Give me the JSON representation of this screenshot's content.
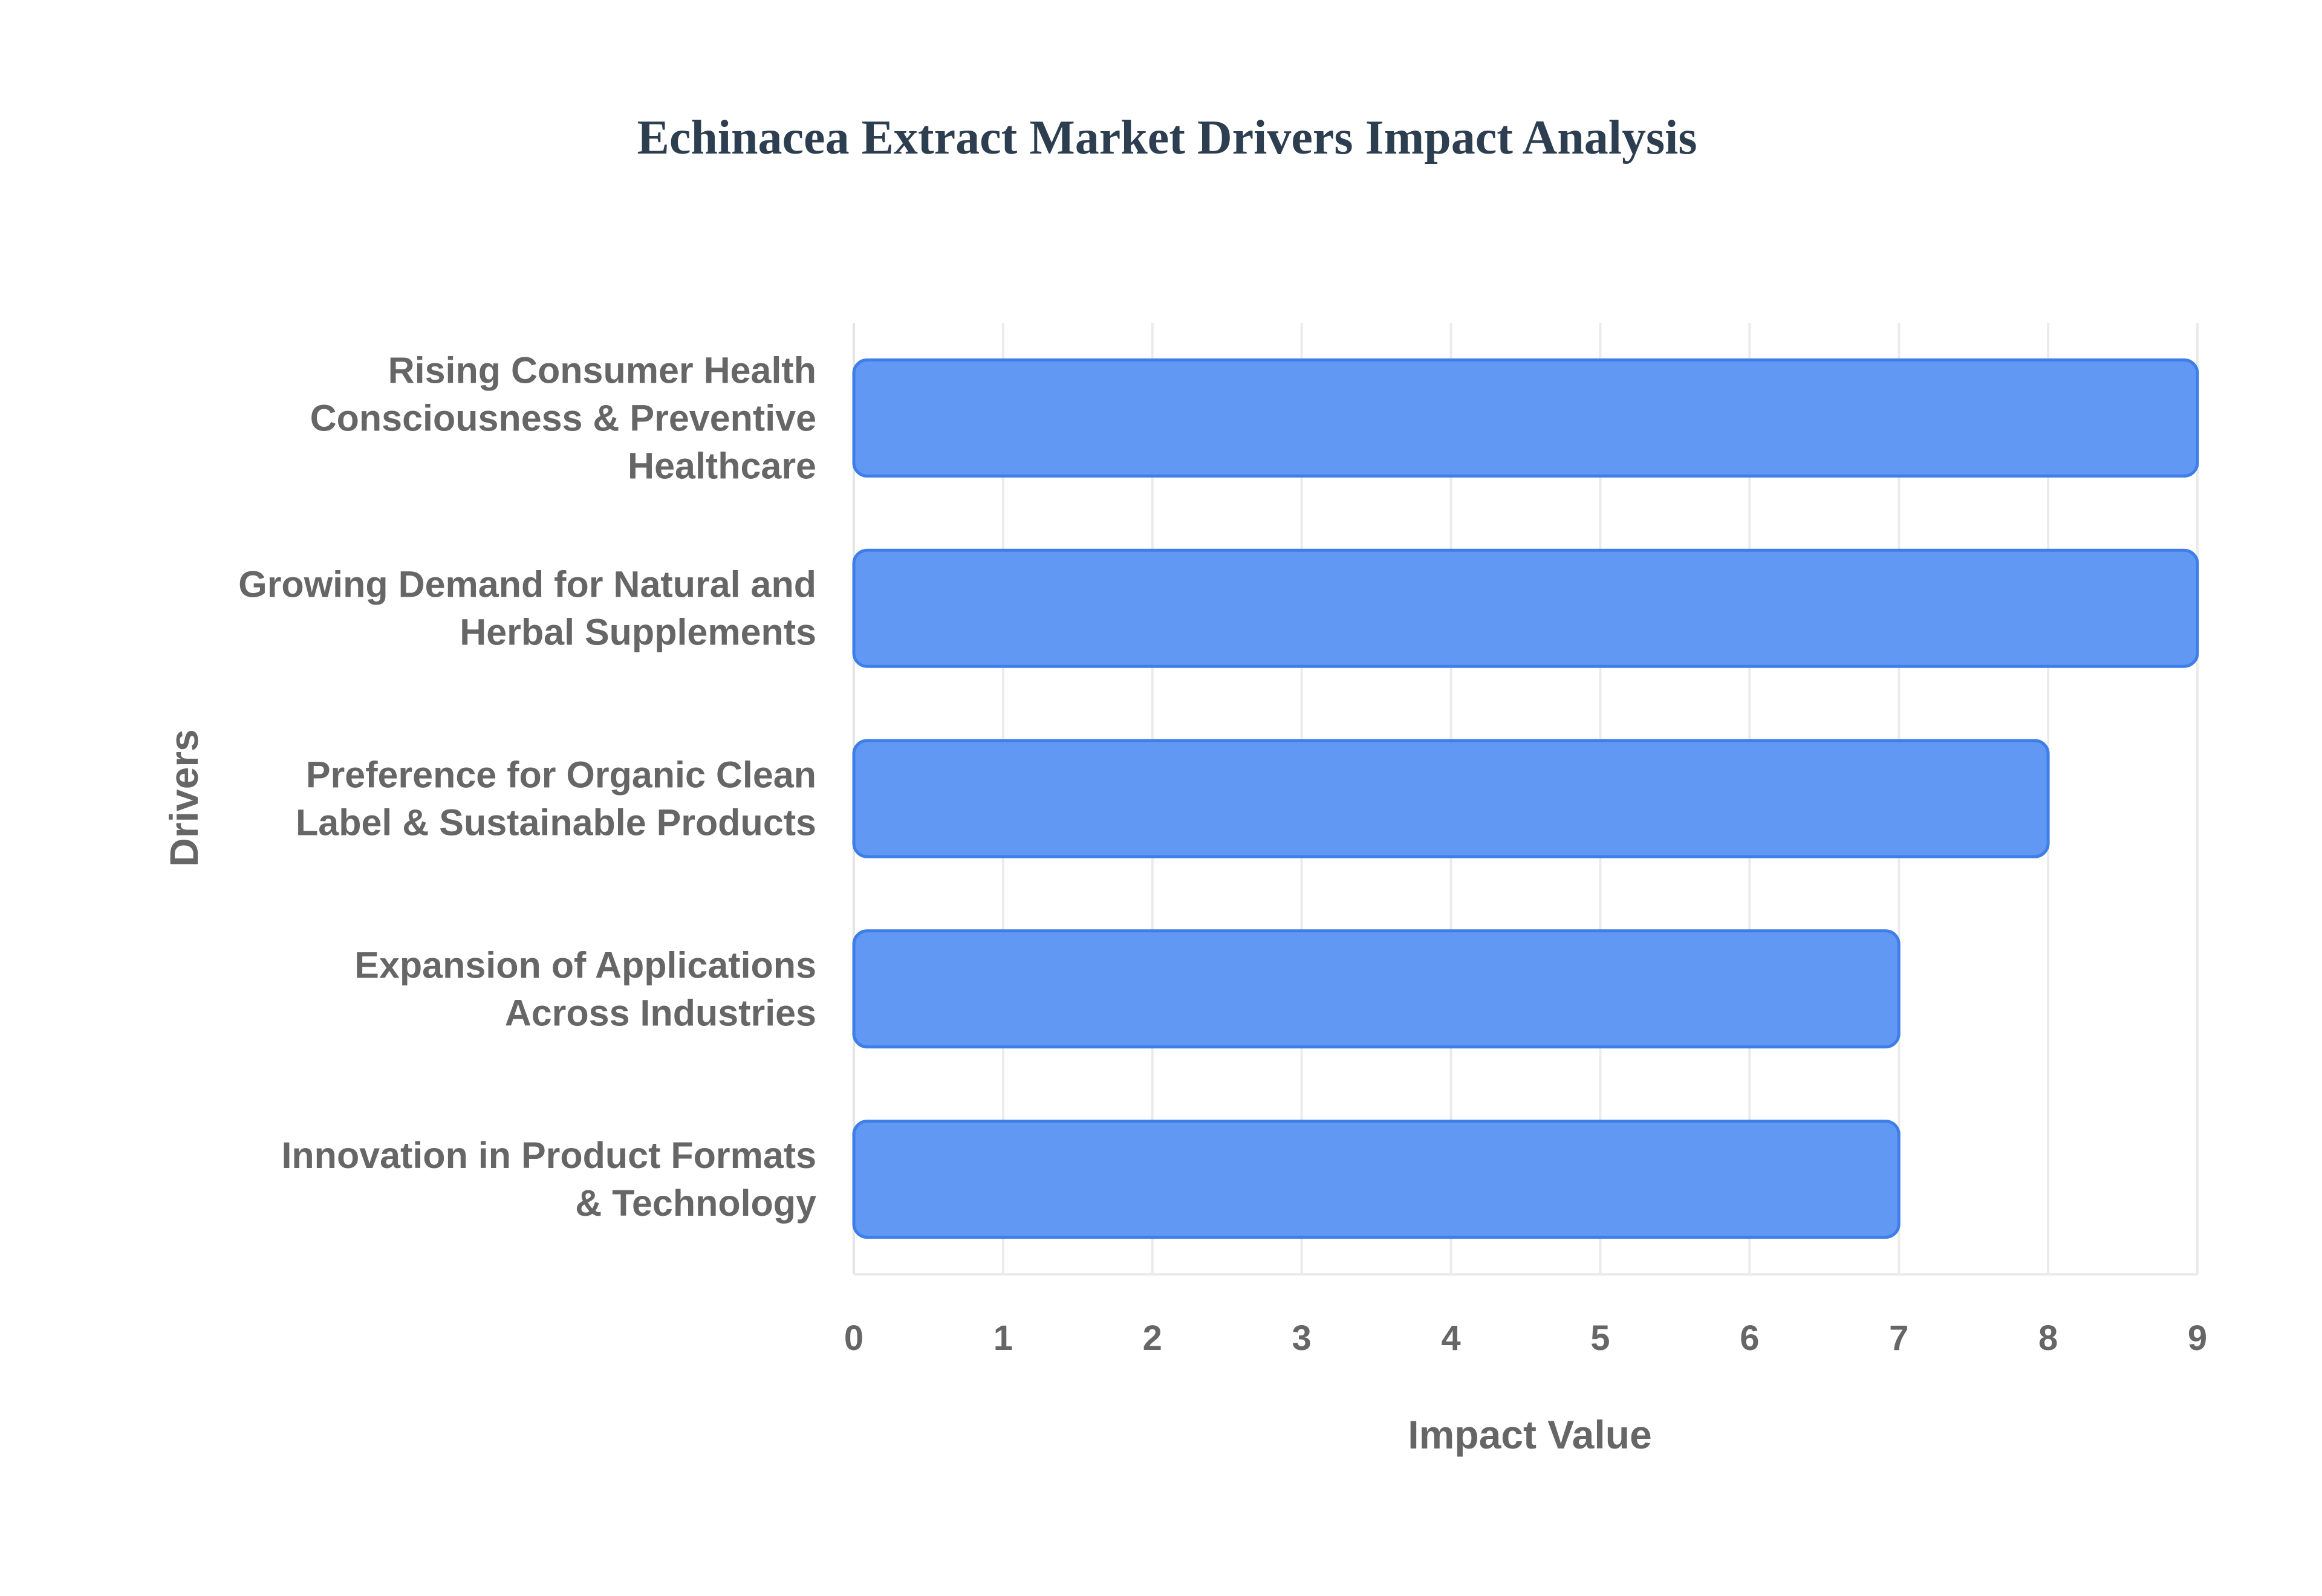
{
  "chart_data": {
    "type": "bar",
    "orientation": "horizontal",
    "title": "Echinacea Extract Market Drivers Impact Analysis",
    "xlabel": "Impact Value",
    "ylabel": "Drivers",
    "categories": [
      [
        "Rising Consumer Health",
        "Consciousness & Preventive",
        "Healthcare"
      ],
      [
        "Growing Demand for Natural and",
        "Herbal Supplements"
      ],
      [
        "Preference for Organic Clean",
        "Label & Sustainable Products"
      ],
      [
        "Expansion of Applications",
        "Across Industries"
      ],
      [
        "Innovation in Product Formats",
        "& Technology"
      ]
    ],
    "values": [
      9,
      9,
      8,
      7,
      7
    ],
    "xlim": [
      0,
      9
    ],
    "x_ticks": [
      "0",
      "1",
      "2",
      "3",
      "4",
      "5",
      "6",
      "7",
      "8",
      "9"
    ],
    "grid": true,
    "legend": "none"
  },
  "colors": {
    "bar_fill": "#6098f4",
    "bar_stroke": "#3f7ee8",
    "grid": "#ebebeb",
    "axis_line": "#e4e4e4",
    "title": "#2c3e50",
    "label": "#666666"
  }
}
